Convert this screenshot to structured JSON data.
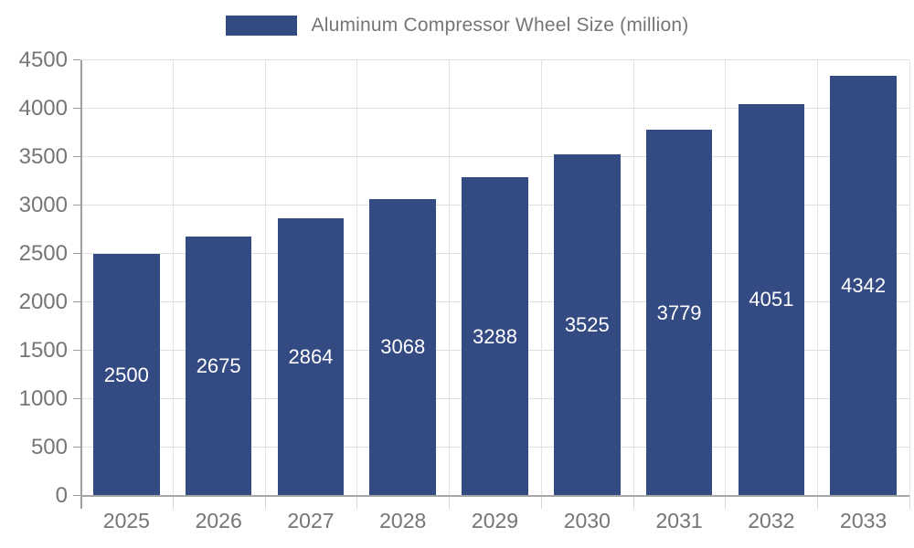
{
  "legend": {
    "label": "Aluminum Compressor Wheel Size (million)"
  },
  "colors": {
    "bar": "#344A83",
    "value_label": "#FFFFFF",
    "axis_text": "#757575",
    "gridline": "#E0E0E0",
    "axis_line": "#A6A6A6"
  },
  "chart_data": {
    "type": "bar",
    "title": "Aluminum Compressor Wheel Size (million)",
    "series_name": "Aluminum Compressor Wheel Size (million)",
    "categories": [
      "2025",
      "2026",
      "2027",
      "2028",
      "2029",
      "2030",
      "2031",
      "2032",
      "2033"
    ],
    "values": [
      2500,
      2675,
      2864,
      3068,
      3288,
      3525,
      3779,
      4051,
      4342
    ],
    "value_labels": [
      "2500",
      "2675",
      "2864",
      "3068",
      "3288",
      "3525",
      "3779",
      "4051",
      "4342"
    ],
    "xlabel": "",
    "ylabel": "",
    "ylim": [
      0,
      4500
    ],
    "y_ticks": [
      0,
      500,
      1000,
      1500,
      2000,
      2500,
      3000,
      3500,
      4000,
      4500
    ],
    "grid": true,
    "legend_position": "top"
  }
}
